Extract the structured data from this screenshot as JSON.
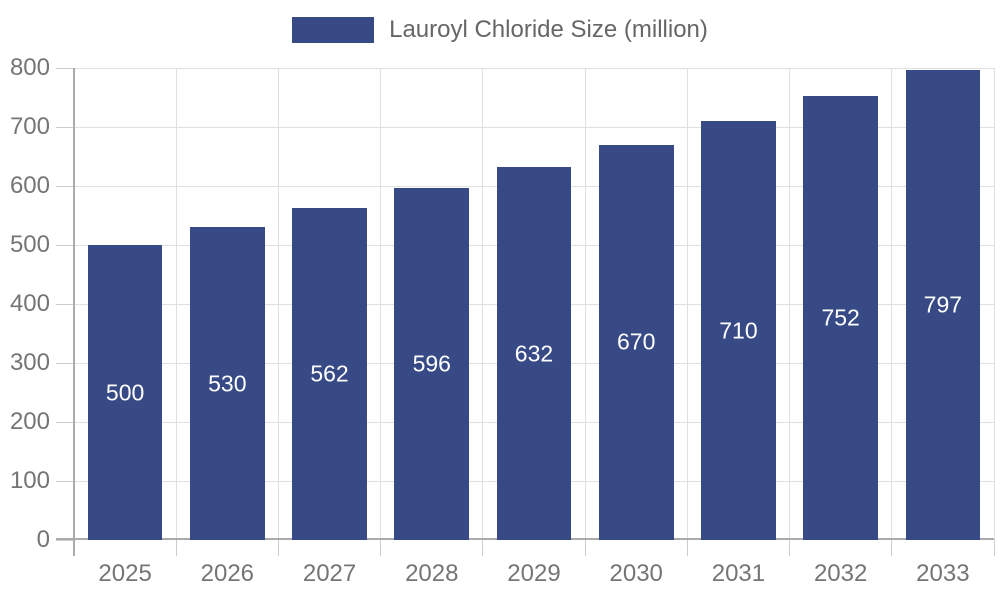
{
  "chart_data": {
    "type": "bar",
    "title": "",
    "legend": {
      "label": "Lauroyl Chloride Size (million)",
      "position": "top"
    },
    "categories": [
      "2025",
      "2026",
      "2027",
      "2028",
      "2029",
      "2030",
      "2031",
      "2032",
      "2033"
    ],
    "series": [
      {
        "name": "Lauroyl Chloride Size (million)",
        "values": [
          500,
          530,
          562,
          596,
          632,
          670,
          710,
          752,
          797
        ]
      }
    ],
    "xlabel": "",
    "ylabel": "",
    "ylim": [
      0,
      800
    ],
    "ytick_step": 100,
    "ytick_labels": [
      "0",
      "100",
      "200",
      "300",
      "400",
      "500",
      "600",
      "700",
      "800"
    ],
    "grid": true,
    "value_labels_inside_bars": true,
    "colors": {
      "bar": "#374a85",
      "grid": "#e0e0e0",
      "axis": "#aaaaaa",
      "tick": "#cccccc",
      "tick_label": "#757575",
      "value_label": "#ffffff",
      "legend_text": "#666666"
    }
  }
}
